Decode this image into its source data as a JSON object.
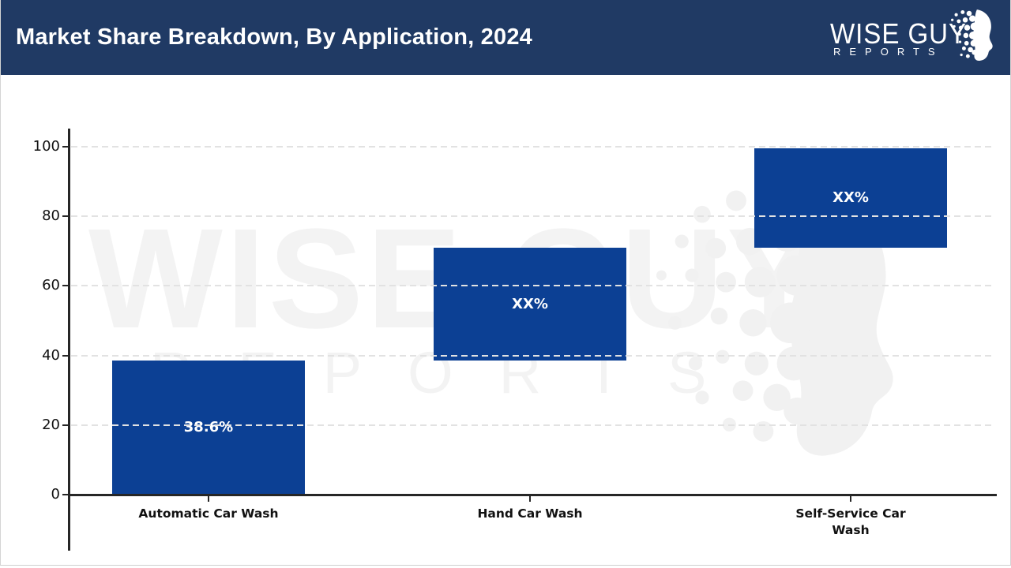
{
  "header": {
    "title": "Market Share Breakdown, By Application, 2024",
    "logo": {
      "wordmark": "WISE GUY",
      "subtext": "REPORTS"
    }
  },
  "watermark": {
    "wordmark": "WISE GUY",
    "subtext": "REPORTS"
  },
  "chart_data": {
    "type": "bar",
    "subtype": "waterfall-segments",
    "title": "Market Share Breakdown, By Application, 2024",
    "categories": [
      "Automatic Car Wash",
      "Hand Car Wash",
      "Self-Service Car Wash"
    ],
    "bars": [
      {
        "category": "Automatic Car Wash",
        "start": 0,
        "end": 38.6,
        "label": "38.6%"
      },
      {
        "category": "Hand Car Wash",
        "start": 38.6,
        "end": 71,
        "label": "XX%"
      },
      {
        "category": "Self-Service Car Wash",
        "start": 71,
        "end": 99.6,
        "label": "XX%"
      }
    ],
    "yticks": [
      0,
      20,
      40,
      60,
      80,
      100
    ],
    "ylim": [
      0,
      104
    ],
    "grid": {
      "axis": "y",
      "style": "dashed",
      "color": "#e2e2e2"
    },
    "legend": null,
    "colors": {
      "bar": "#0c4094",
      "bar_label": "#ffffff",
      "axis": "#262626",
      "tick_label": "#111111",
      "header_bg": "#203a64",
      "header_text": "#ffffff",
      "watermark": "#f3f3f3"
    }
  }
}
